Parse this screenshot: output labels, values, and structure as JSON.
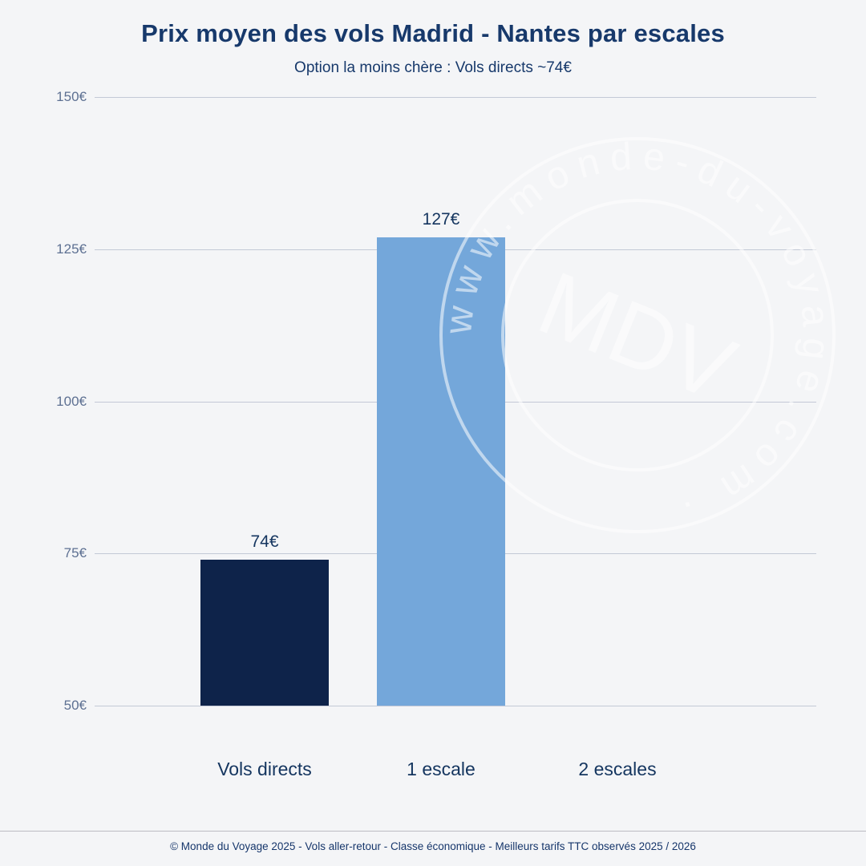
{
  "page": {
    "title": "Prix moyen des vols Madrid - Nantes par escales",
    "subtitle": "Option la moins chère : Vols directs ~74€",
    "footer": "© Monde du Voyage 2025 - Vols aller-retour - Classe économique - Meilleurs tarifs TTC observés 2025 / 2026"
  },
  "watermark": {
    "ring_text": "www.monde-du-voyage.com ·",
    "center_text": "MDV"
  },
  "chart_data": {
    "type": "bar",
    "title": "Prix moyen des vols Madrid - Nantes par escales",
    "subtitle": "Option la moins chère : Vols directs ~74€",
    "categories": [
      "Vols directs",
      "1 escale",
      "2 escales"
    ],
    "values": [
      74,
      127,
      null
    ],
    "value_labels": [
      "74€",
      "127€",
      ""
    ],
    "bar_colors": [
      "#0e234a",
      "#74a7da",
      "#74a7da"
    ],
    "xlabel": "",
    "ylabel": "",
    "ylim": [
      50,
      150
    ],
    "yticks": [
      150,
      125,
      100,
      75,
      50
    ],
    "ytick_labels": [
      "150€",
      "125€",
      "100€",
      "75€",
      "50€"
    ],
    "grid": true,
    "legend": "none"
  },
  "colors": {
    "background": "#f4f5f7",
    "title": "#17396b",
    "gridline": "#c3c9d6",
    "tick_label": "#5d7092",
    "bar_dark": "#0e234a",
    "bar_light": "#74a7da"
  }
}
